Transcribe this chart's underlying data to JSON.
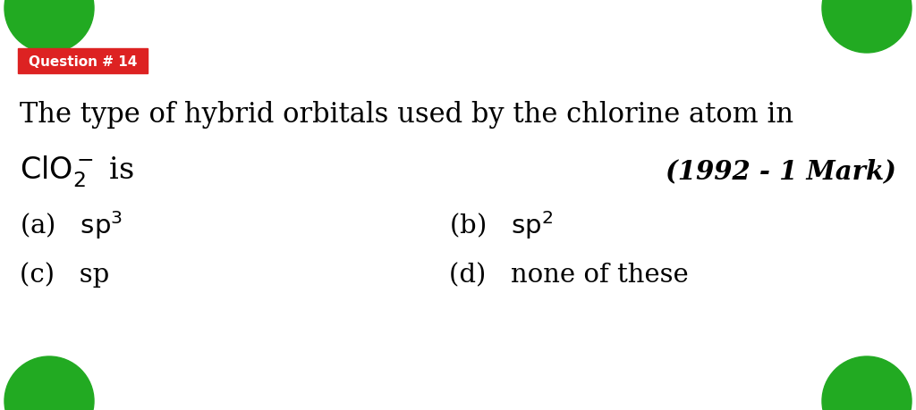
{
  "background_color": "#ffffff",
  "question_label": "Question # 14",
  "question_label_bg": "#dd2222",
  "question_label_color": "#ffffff",
  "question_label_fontsize": 11,
  "line1": "The type of hybrid orbitals used by the chlorine atom in",
  "line1_fontsize": 22,
  "formula_fontsize": 22,
  "mark_text": "(1992 - 1 Mark)",
  "mark_fontsize": 21,
  "option_fontsize": 21,
  "corner_circle_color": "#22aa22",
  "fig_width": 10.24,
  "fig_height": 4.6,
  "dpi": 100
}
